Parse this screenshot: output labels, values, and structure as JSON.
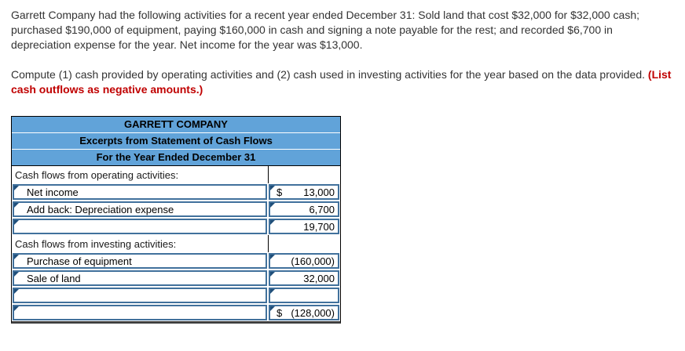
{
  "problem": {
    "paragraph1": "Garrett Company had the following activities for a recent year ended December 31: Sold land that cost $32,000 for $32,000 cash; purchased $190,000 of equipment, paying $160,000 in cash and signing a note payable for the rest; and recorded $6,700 in depreciation expense for the year. Net income for the year was $13,000.",
    "paragraph2": "Compute (1) cash provided by operating activities and (2) cash used in investing activities for the year based on the data provided. ",
    "instruction_emphasis": "(List cash outflows as negative amounts.)"
  },
  "worksheet": {
    "title": "GARRETT COMPANY",
    "subtitle": "Excerpts from Statement of Cash Flows",
    "period": "For the Year Ended December 31",
    "rows": [
      {
        "type": "section",
        "label": "Cash flows from operating activities:",
        "currency": "",
        "amount": ""
      },
      {
        "type": "input",
        "label": "Net income",
        "currency": "$",
        "amount": "13,000"
      },
      {
        "type": "input",
        "label": "Add back: Depreciation expense",
        "currency": "",
        "amount": "6,700"
      },
      {
        "type": "input",
        "label": "",
        "currency": "",
        "amount": "19,700"
      },
      {
        "type": "section",
        "label": "Cash flows from investing activities:",
        "currency": "",
        "amount": ""
      },
      {
        "type": "input",
        "label": "Purchase of equipment",
        "currency": "",
        "amount": "(160,000)"
      },
      {
        "type": "input",
        "label": "Sale of land",
        "currency": "",
        "amount": "32,000"
      },
      {
        "type": "input",
        "label": "",
        "currency": "",
        "amount": ""
      },
      {
        "type": "input",
        "label": "",
        "currency": "$",
        "amount": "(128,000)"
      }
    ],
    "colors": {
      "header_bg": "#61A3D9",
      "input_border": "#41719C",
      "marker": "#1F4E79",
      "emphasis_red": "#C00000"
    }
  }
}
